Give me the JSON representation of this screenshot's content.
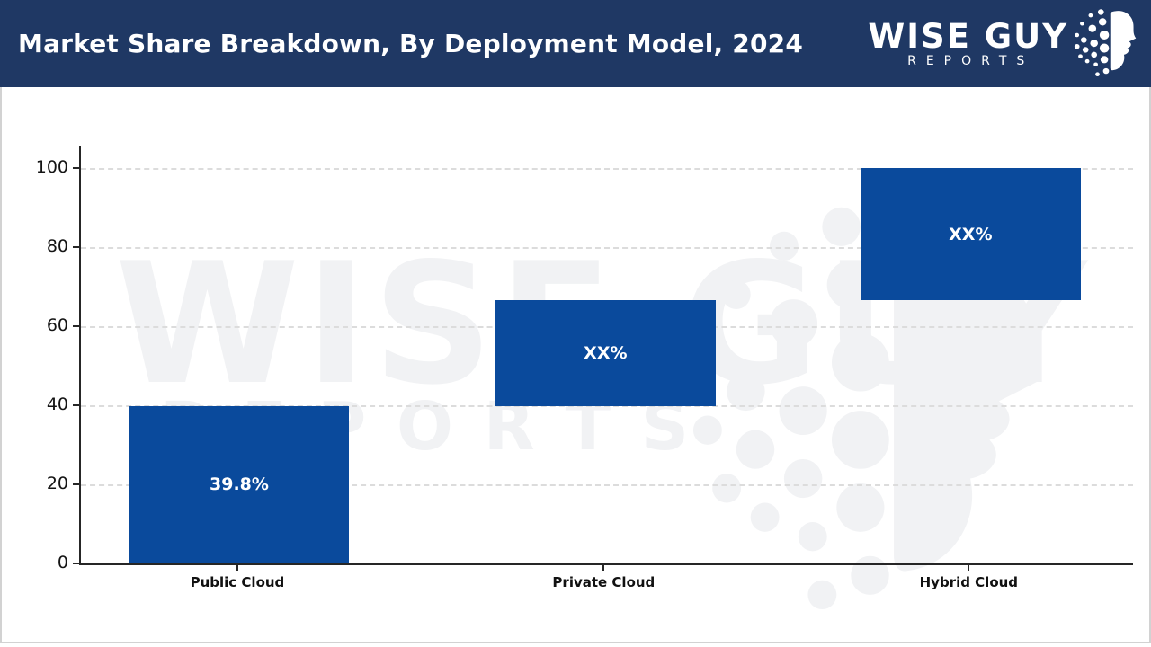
{
  "header": {
    "title": "Market Share Breakdown, By Deployment Model, 2024",
    "logo": {
      "line1": "WISE GUY",
      "line2": "REPORTS"
    }
  },
  "watermark": {
    "line1": "WISE GUY",
    "line2": "R E P O R T S"
  },
  "chart_data": {
    "type": "bar",
    "subtype": "floating-segment-waterfall",
    "title": "Market Share Breakdown, By Deployment Model, 2024",
    "categories": [
      "Public Cloud",
      "Private Cloud",
      "Hybrid Cloud"
    ],
    "segments": [
      {
        "category": "Public Cloud",
        "start": 0,
        "end": 39.8,
        "label": "39.8%"
      },
      {
        "category": "Private Cloud",
        "start": 39.8,
        "end": 66.6,
        "label": "XX%"
      },
      {
        "category": "Hybrid Cloud",
        "start": 66.6,
        "end": 100,
        "label": "XX%"
      }
    ],
    "yticks": [
      0,
      20,
      40,
      60,
      80,
      100
    ],
    "ylim": [
      0,
      105.5
    ],
    "xlabel": "",
    "ylabel": "",
    "grid": "horizontal-dashed",
    "legend": "none",
    "colors": {
      "bar": "#0a4a9c",
      "bar_label": "#ffffff",
      "header_bg": "#1f3864",
      "axis": "#262626",
      "grid": "#dcdcdc",
      "watermark": "#f1f2f4"
    }
  }
}
